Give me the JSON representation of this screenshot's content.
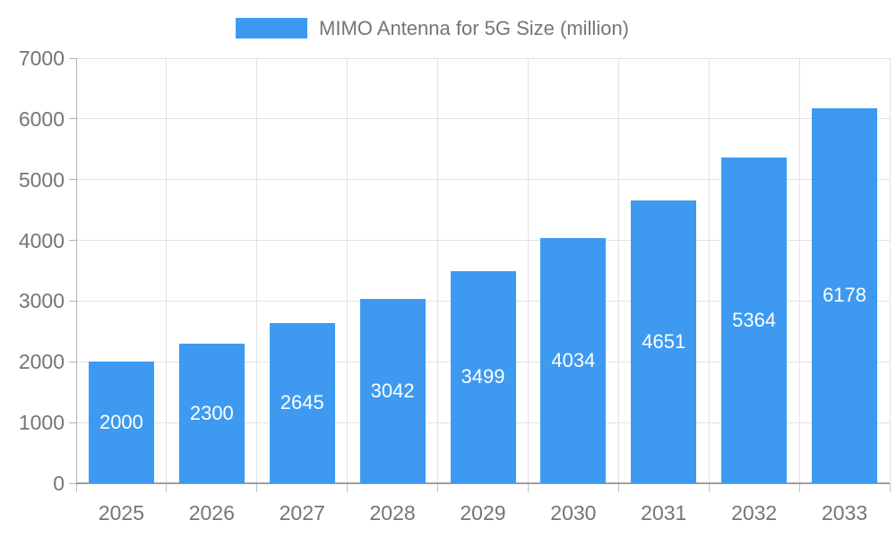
{
  "chart_data": {
    "type": "bar",
    "title": "MIMO Antenna for 5G Size (million)",
    "categories": [
      "2025",
      "2026",
      "2027",
      "2028",
      "2029",
      "2030",
      "2031",
      "2032",
      "2033"
    ],
    "values": [
      2000,
      2300,
      2645,
      3042,
      3499,
      4034,
      4651,
      5364,
      6178
    ],
    "xlabel": "",
    "ylabel": "",
    "ylim": [
      0,
      7000
    ],
    "yticks": [
      0,
      1000,
      2000,
      3000,
      4000,
      5000,
      6000,
      7000
    ],
    "grid": true,
    "legend_position": "top-center",
    "colors": {
      "bar": "#3D9AF0",
      "value_label": "#ffffff",
      "axis_label": "#757575",
      "legend_text": "#757575",
      "gridline": "#e2e2e2",
      "axis_line": "#9e9e9e",
      "tick": "#c0c0c0",
      "y_axis_line": "#b3b3b3",
      "background": "#ffffff"
    }
  }
}
